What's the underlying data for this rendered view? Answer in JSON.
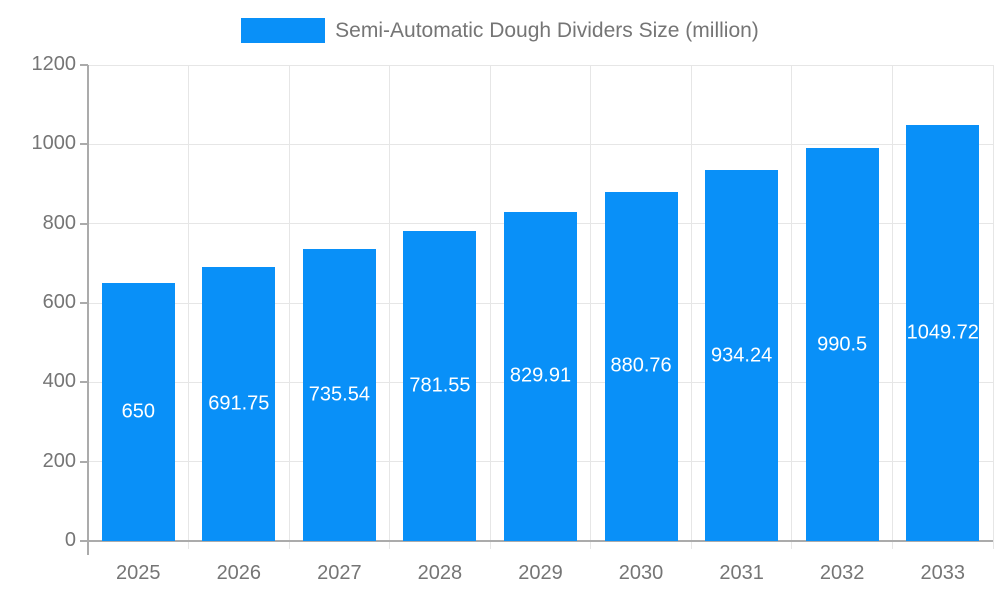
{
  "legend": {
    "series_label": "Semi-Automatic Dough Dividers Size (million)"
  },
  "chart_data": {
    "type": "bar",
    "title": "Semi-Automatic Dough Dividers Size (million)",
    "categories": [
      "2025",
      "2026",
      "2027",
      "2028",
      "2029",
      "2030",
      "2031",
      "2032",
      "2033"
    ],
    "values": [
      650,
      691.75,
      735.54,
      781.55,
      829.91,
      880.76,
      934.24,
      990.5,
      1049.72
    ],
    "value_labels": [
      "650",
      "691.75",
      "735.54",
      "781.55",
      "829.91",
      "880.76",
      "934.24",
      "990.5",
      "1049.72"
    ],
    "xlabel": "",
    "ylabel": "",
    "ylim": [
      0,
      1200
    ],
    "yticks": [
      0,
      200,
      400,
      600,
      800,
      1000,
      1200
    ],
    "grid": true,
    "legend_position": "top",
    "colors": {
      "bar": "#0990f8",
      "bar_value_label": "#ffffff",
      "axis_line": "#ababab",
      "gridline": "#e6e6e6",
      "tick_text": "#757575",
      "legend_text": "#757575",
      "background": "#ffffff"
    }
  }
}
